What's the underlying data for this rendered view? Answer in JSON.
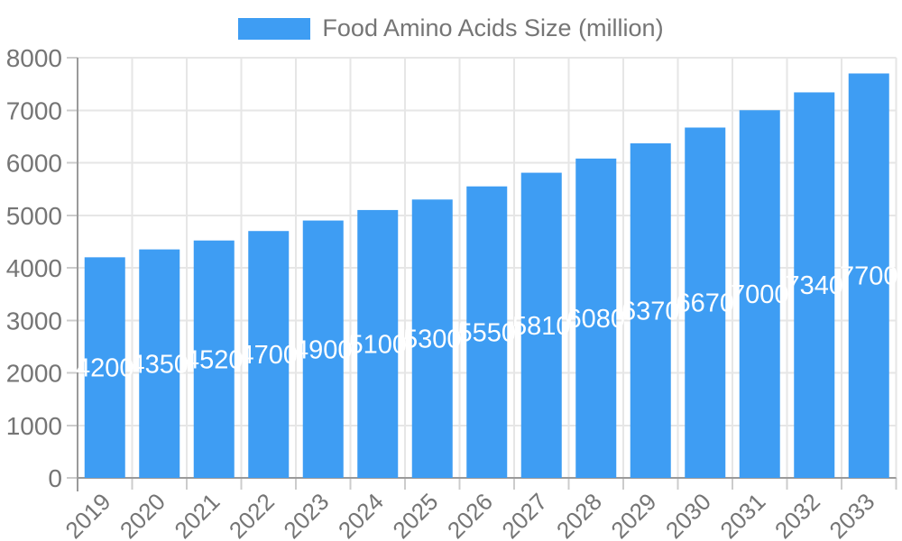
{
  "legend": {
    "label": "Food Amino Acids Size (million)"
  },
  "chart_data": {
    "type": "bar",
    "title": "Food Amino Acids Size (million)",
    "series_name": "Food Amino Acids Size (million)",
    "categories": [
      "2019",
      "2020",
      "2021",
      "2022",
      "2023",
      "2024",
      "2025",
      "2026",
      "2027",
      "2028",
      "2029",
      "2030",
      "2031",
      "2032",
      "2033"
    ],
    "values": [
      4200,
      4350,
      4520,
      4700,
      4900,
      5100,
      5300,
      5550,
      5810,
      6080,
      6370,
      6670,
      7000,
      7340,
      7700
    ],
    "xlabel": "",
    "ylabel": "",
    "ylim": [
      0,
      8000
    ],
    "ytick_step": 1000,
    "ytick_labels": [
      "0",
      "1000",
      "2000",
      "3000",
      "4000",
      "5000",
      "6000",
      "7000",
      "8000"
    ],
    "grid": true,
    "legend_position": "top-center",
    "bar_labels_inside": true,
    "colors": {
      "bar": "#3e9df3",
      "bar_label_text": "#ffffff",
      "axis_text": "#757575",
      "gridline": "#e6e6e6",
      "tick": "#cccccc",
      "axis_line": "#9a9a9a",
      "background": "#ffffff"
    }
  }
}
